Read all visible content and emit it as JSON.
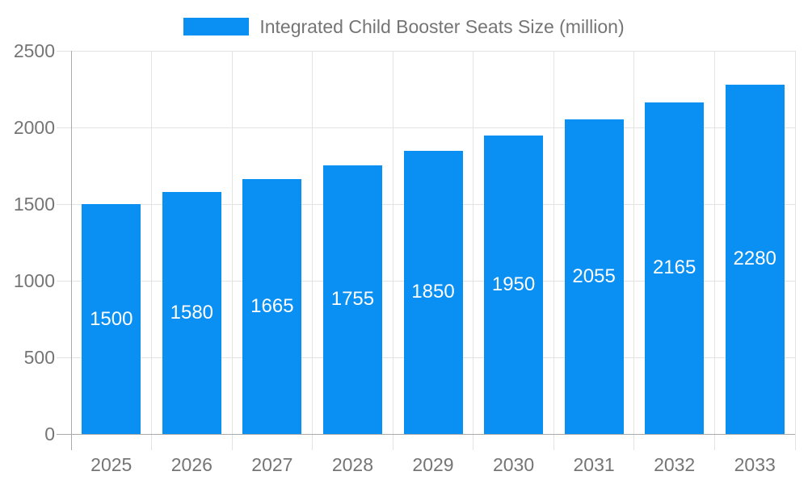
{
  "chart_data": {
    "type": "bar",
    "title": "Integrated Child Booster Seats Size (million)",
    "categories": [
      "2025",
      "2026",
      "2027",
      "2028",
      "2029",
      "2030",
      "2031",
      "2032",
      "2033"
    ],
    "values": [
      1500,
      1580,
      1665,
      1755,
      1850,
      1950,
      2055,
      2165,
      2280
    ],
    "series": [
      {
        "name": "Integrated Child Booster Seats Size (million)",
        "values": [
          1500,
          1580,
          1665,
          1755,
          1850,
          1950,
          2055,
          2165,
          2280
        ]
      }
    ],
    "xlabel": "",
    "ylabel": "",
    "ylim": [
      0,
      2500
    ],
    "y_ticks": [
      0,
      500,
      1000,
      1500,
      2000,
      2500
    ],
    "grid": true,
    "legend_position": "top",
    "colors": {
      "bar": "#0a8ff2",
      "value_label": "#ffffff",
      "axis_text": "#757575",
      "grid_line": "#e3e3e3",
      "axis_line": "#aaaaaa"
    }
  }
}
